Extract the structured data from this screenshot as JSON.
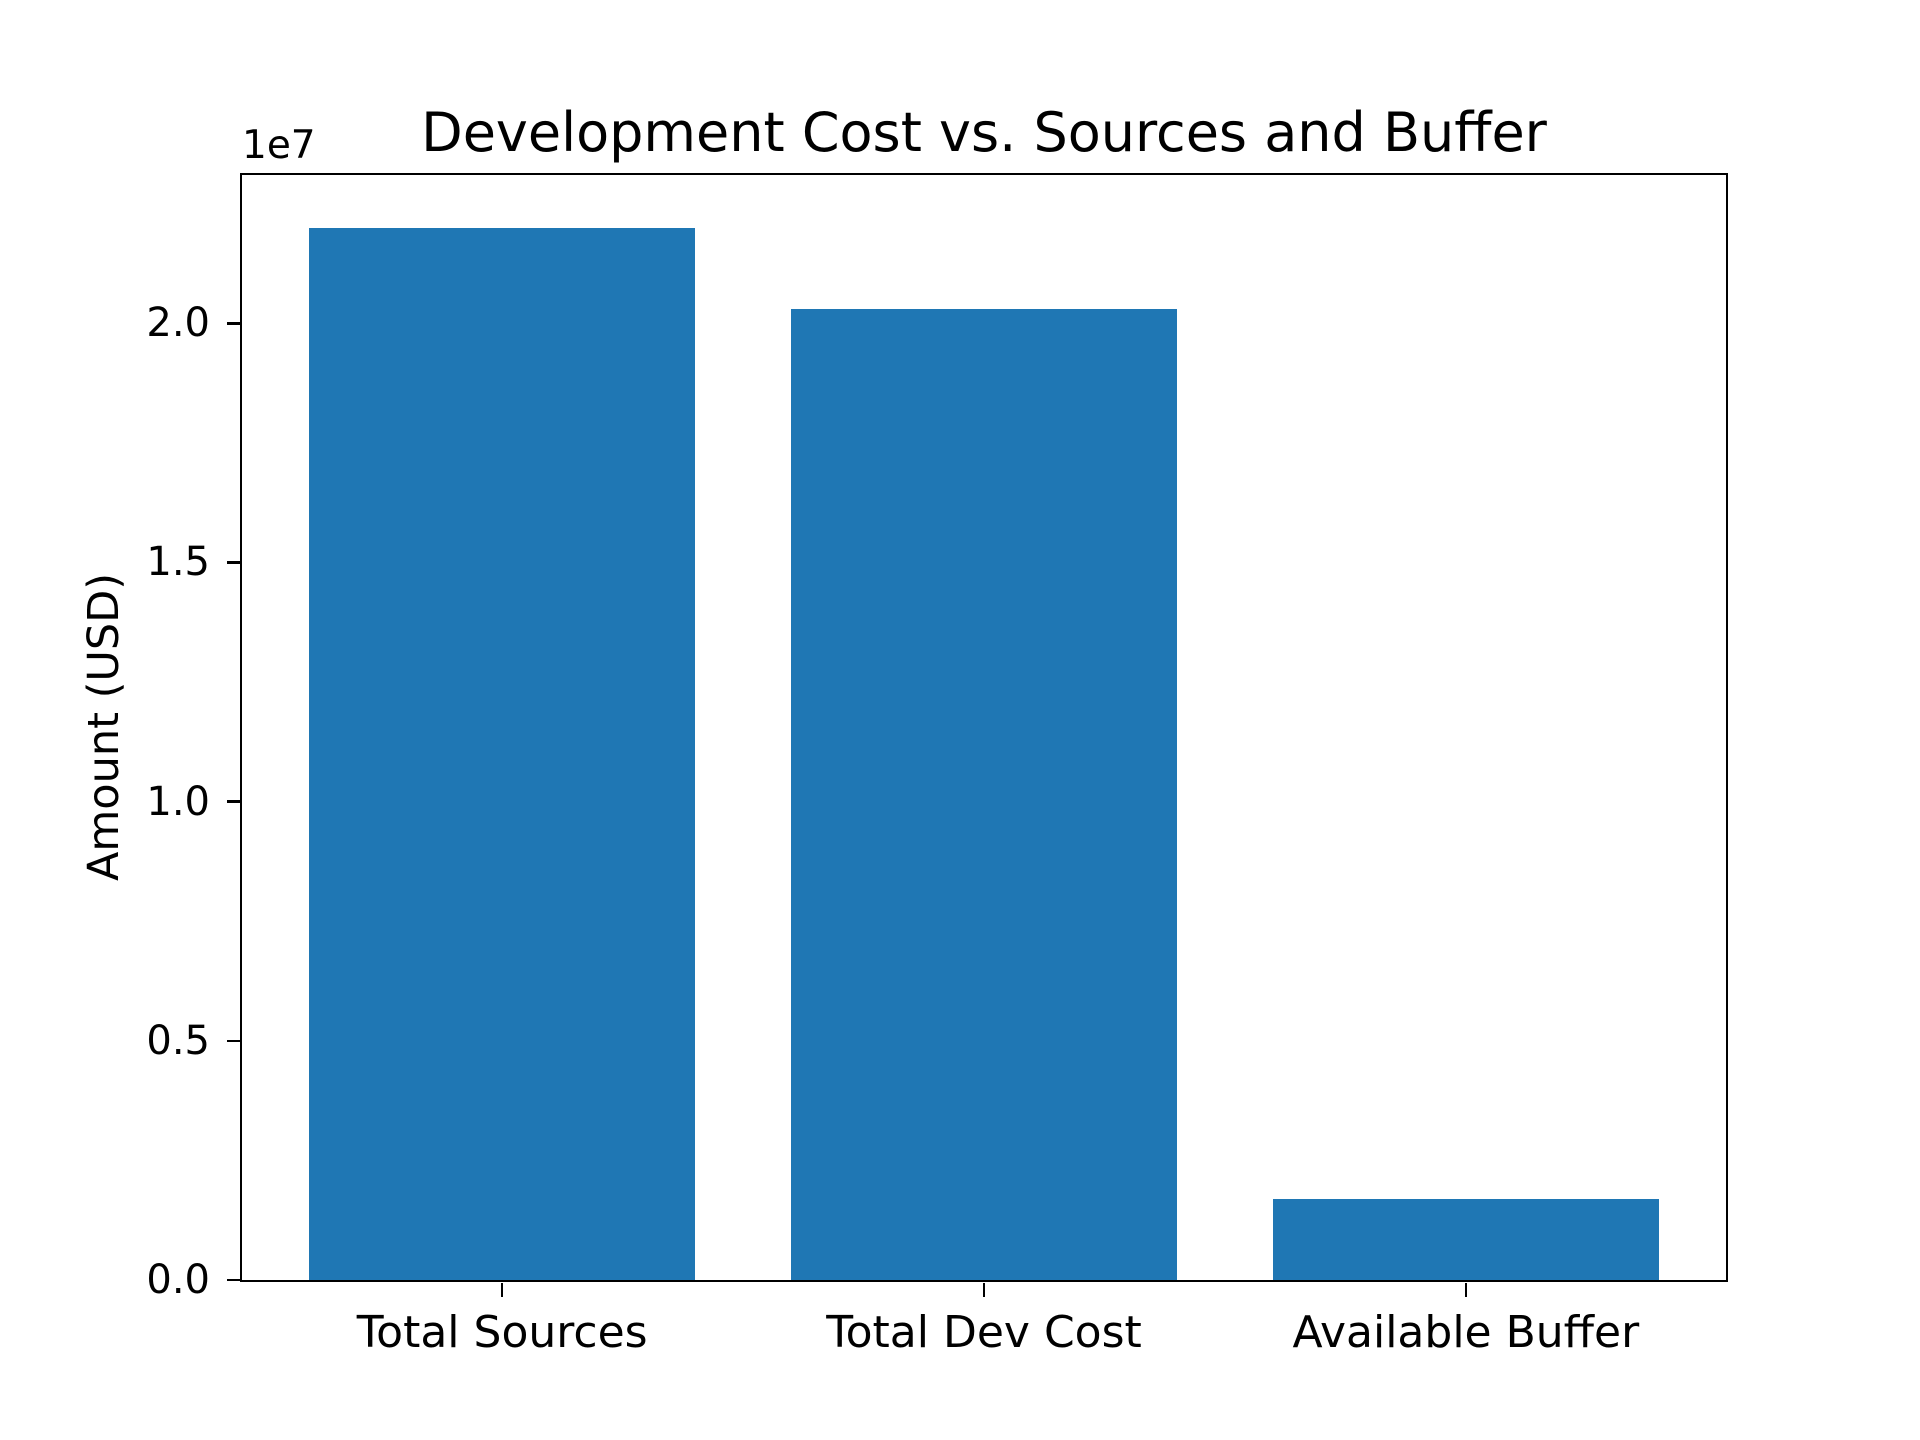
{
  "chart_data": {
    "type": "bar",
    "title": "Development Cost vs. Sources and Buffer",
    "ylabel": "Amount (USD)",
    "xlabel": "",
    "offset_text": "1e7",
    "categories": [
      "Total Sources",
      "Total Dev Cost",
      "Available Buffer"
    ],
    "values": [
      22000000,
      20300000,
      1700000
    ],
    "ylim": [
      0,
      23100000
    ],
    "ytick_values": [
      0,
      5000000,
      10000000,
      15000000,
      20000000
    ],
    "ytick_labels": [
      "0.0",
      "0.5",
      "1.0",
      "1.5",
      "2.0"
    ],
    "bar_color": "#1f77b4",
    "background_color": "#ffffff",
    "text_color": "#000000",
    "grid": false,
    "legend": null
  }
}
